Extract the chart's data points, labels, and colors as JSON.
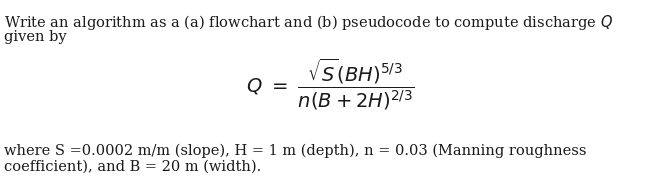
{
  "line1": "Write an algorithm as a (a) flowchart and (b) pseudocode to compute discharge $Q$",
  "line2": "given by",
  "formula": "$Q \\ = \\ \\dfrac{\\sqrt{S}(BH)^{5/3}}{n(B+2H)^{2/3}}$",
  "line3": "where S =0.0002 m/m (slope), H = 1 m (depth), n = 0.03 (Manning roughness",
  "line4": "coefficient), and B = 20 m (width).",
  "bg_color": "#ffffff",
  "text_color": "#1a1a1a",
  "fontsize_body": 10.5,
  "fontsize_formula": 14
}
